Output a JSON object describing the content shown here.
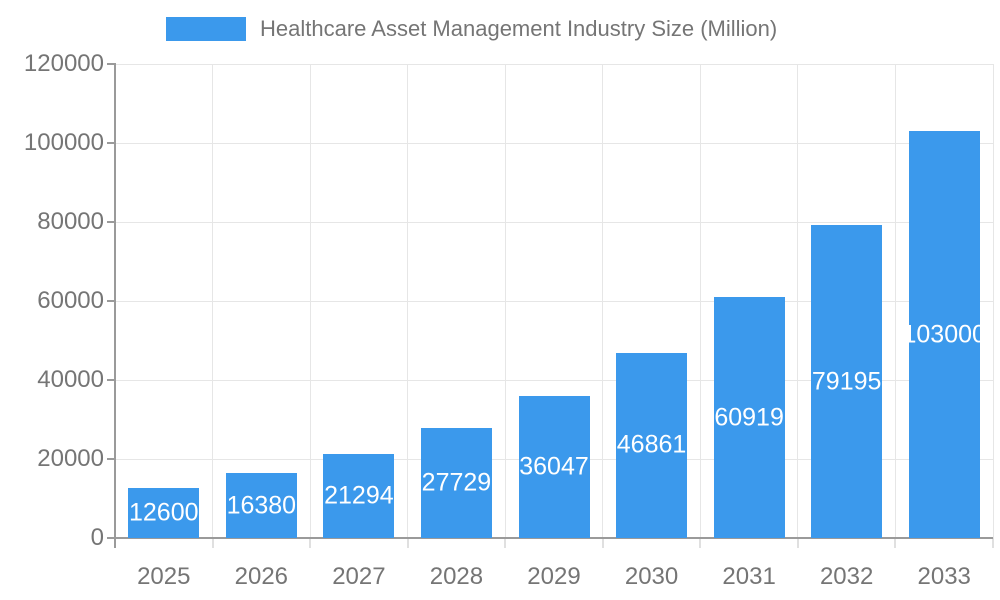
{
  "legend": {
    "label": "Healthcare Asset Management Industry Size (Million)",
    "swatch_color": "#3b99ec"
  },
  "chart_data": {
    "type": "bar",
    "title": "Healthcare Asset Management Industry Size (Million)",
    "categories": [
      "2025",
      "2026",
      "2027",
      "2028",
      "2029",
      "2030",
      "2031",
      "2032",
      "2033"
    ],
    "values": [
      12600,
      16380,
      21294,
      27729,
      36047,
      46861,
      60919,
      79195,
      103000
    ],
    "xlabel": "",
    "ylabel": "",
    "ylim": [
      0,
      120000
    ],
    "yticks": [
      0,
      20000,
      40000,
      60000,
      80000,
      100000,
      120000
    ],
    "grid": true,
    "legend_position": "top",
    "bar_color": "#3b99ec",
    "value_label_color": "#ffffff",
    "axis_text_color": "#757575",
    "gridline_color": "#e6e6e6",
    "axis_line_color": "#9a9a9a"
  }
}
